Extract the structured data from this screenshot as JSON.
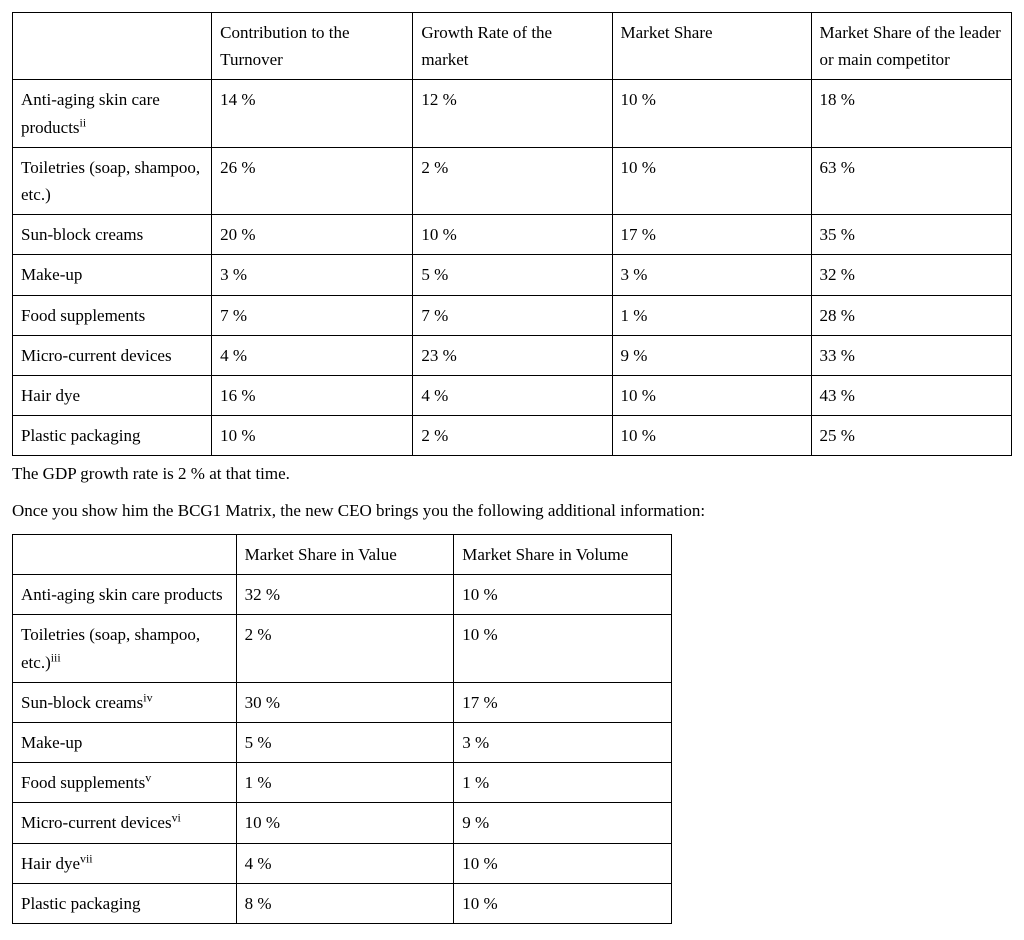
{
  "table1": {
    "columns": [
      "",
      "Contribution to the Turnover",
      "Growth Rate of the market",
      "Market Share",
      "Market Share of the leader or main competitor"
    ],
    "rows": [
      {
        "label": "Anti-aging skin care products",
        "sup": "ii",
        "c1": "14 %",
        "c2": "12 %",
        "c3": "10 %",
        "c4": "18 %"
      },
      {
        "label": "Toiletries (soap, shampoo, etc.)",
        "sup": "",
        "c1": "26 %",
        "c2": "2 %",
        "c3": "10 %",
        "c4": "63 %"
      },
      {
        "label": "Sun-block creams",
        "sup": "",
        "c1": "20 %",
        "c2": "10 %",
        "c3": "17 %",
        "c4": "35 %"
      },
      {
        "label": "Make-up",
        "sup": "",
        "c1": "3 %",
        "c2": "5 %",
        "c3": "3 %",
        "c4": "32 %"
      },
      {
        "label": "Food supplements",
        "sup": "",
        "c1": "7 %",
        "c2": "7 %",
        "c3": "1 %",
        "c4": "28 %"
      },
      {
        "label": "Micro-current devices",
        "sup": "",
        "c1": "4 %",
        "c2": "23 %",
        "c3": "9 %",
        "c4": "33 %"
      },
      {
        "label": "Hair dye",
        "sup": "",
        "c1": "16 %",
        "c2": "4 %",
        "c3": "10 %",
        "c4": "43 %"
      },
      {
        "label": "Plastic packaging",
        "sup": "",
        "c1": "10 %",
        "c2": "2 %",
        "c3": "10 %",
        "c4": "25 %"
      }
    ]
  },
  "intertext1": "The GDP growth rate is 2 % at that time.",
  "intertext2": "Once you show him the BCG1 Matrix, the new CEO brings you the following additional information:",
  "table2": {
    "columns": [
      "",
      "Market Share in Value",
      "Market Share in Volume"
    ],
    "rows": [
      {
        "label": "Anti-aging skin care products",
        "sup": "",
        "c1": "32 %",
        "c2": "10 %"
      },
      {
        "label": "Toiletries (soap, shampoo, etc.)",
        "sup": "iii",
        "c1": "2 %",
        "c2": "10 %"
      },
      {
        "label": "Sun-block creams",
        "sup": "iv",
        "c1": "30 %",
        "c2": "17 %"
      },
      {
        "label": "Make-up",
        "sup": "",
        "c1": "5 %",
        "c2": "3 %"
      },
      {
        "label": "Food supplements",
        "sup": "v",
        "c1": "1 %",
        "c2": "1 %"
      },
      {
        "label": "Micro-current devices",
        "sup": "vi",
        "c1": "10 %",
        "c2": "9 %"
      },
      {
        "label": "Hair dye",
        "sup": "vii",
        "c1": "4 %",
        "c2": "10 %"
      },
      {
        "label": "Plastic packaging",
        "sup": "",
        "c1": "8 %",
        "c2": "10 %"
      }
    ]
  },
  "style": {
    "font_family": "Times New Roman",
    "font_size_pt": 13,
    "text_color": "#000000",
    "background_color": "#ffffff",
    "border_color": "#000000"
  }
}
